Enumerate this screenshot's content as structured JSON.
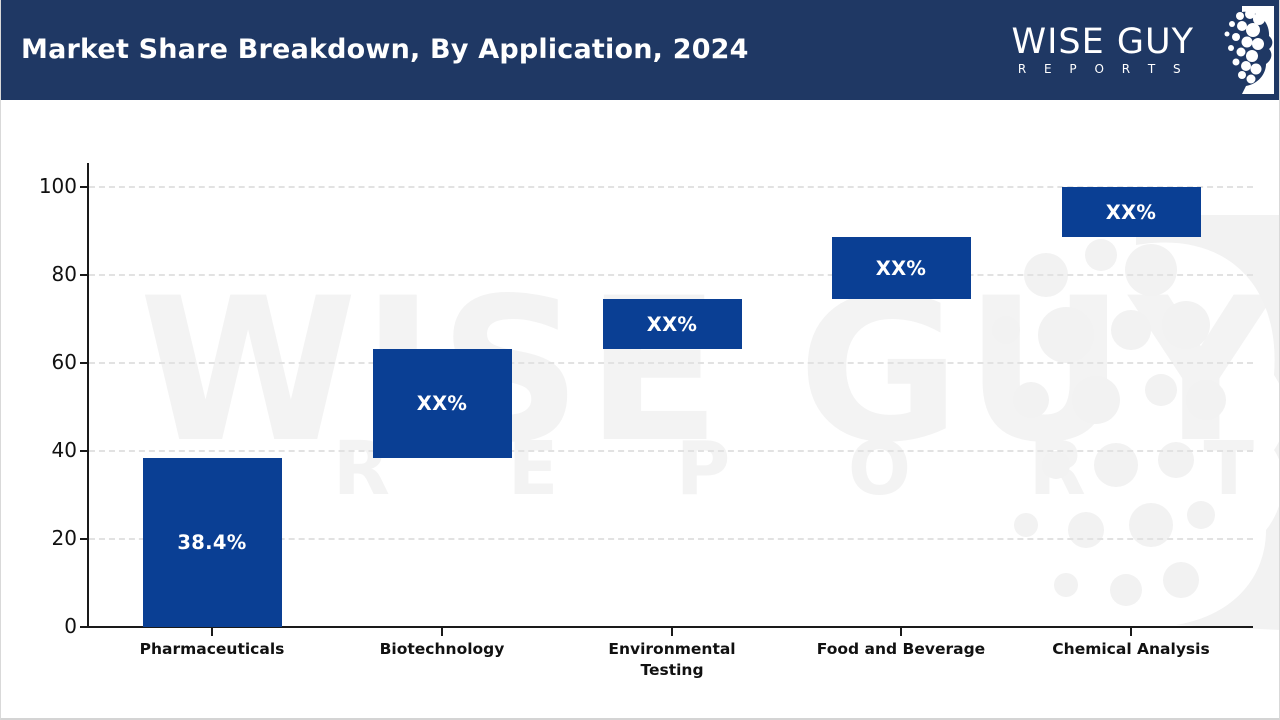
{
  "header": {
    "title": "Market Share Breakdown, By Application, 2024",
    "bg_color": "#1f3864",
    "logo": {
      "line1": "WISE GUY",
      "line2": "R E P O R T S",
      "icon": "dotted-head-profile"
    }
  },
  "watermark": {
    "line1": "WISE GUY",
    "line2": "R E P O R T S",
    "icon": "dotted-head-profile"
  },
  "chart_data": {
    "type": "bar",
    "subtype": "waterfall",
    "title": "Market Share Breakdown, By Application, 2024",
    "categories": [
      "Pharmaceuticals",
      "Biotechnology",
      "Environmental\nTesting",
      "Food and Beverage",
      "Chemical Analysis"
    ],
    "segments": [
      {
        "category": "Pharmaceuticals",
        "start": 0,
        "end": 38.4,
        "label": "38.4%"
      },
      {
        "category": "Biotechnology",
        "start": 38.4,
        "end": 63.2,
        "label": "XX%"
      },
      {
        "category": "Environmental\nTesting",
        "start": 63.2,
        "end": 74.5,
        "label": "XX%"
      },
      {
        "category": "Food and Beverage",
        "start": 74.5,
        "end": 88.6,
        "label": "XX%"
      },
      {
        "category": "Chemical Analysis",
        "start": 88.6,
        "end": 100,
        "label": "XX%"
      }
    ],
    "bar_color": "#0a3f94",
    "bar_label_color": "#ffffff",
    "ylim": [
      0,
      105
    ],
    "yticks": [
      0,
      20,
      40,
      60,
      80,
      100
    ],
    "grid": "horizontal-dashed",
    "legend": "none",
    "xlabel": "",
    "ylabel": ""
  }
}
